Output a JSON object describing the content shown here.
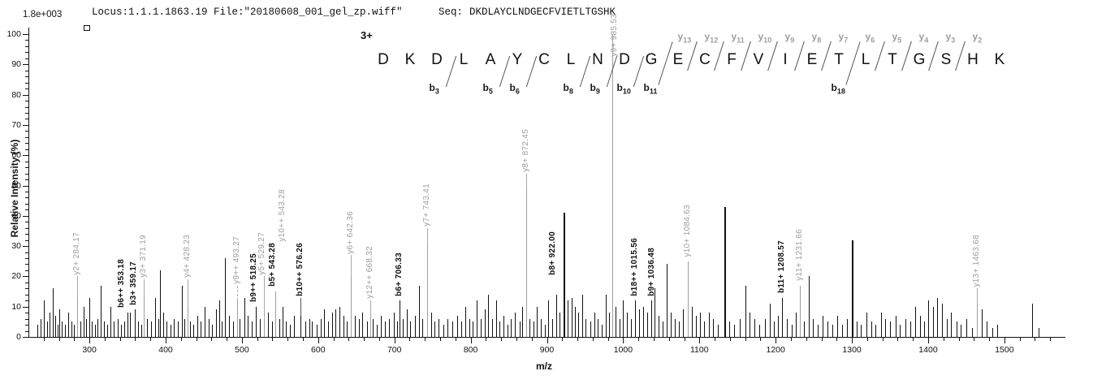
{
  "header": {
    "locus_file": "Locus:1.1.1.1863.19 File:\"20180608_001_gel_zp.wiff\"",
    "seq_label": "Seq:",
    "sequence": "DKDLAYCLNDGECFVIETLTGSHK"
  },
  "scale_label": "1.8e+003",
  "fragment_map": {
    "charge_label": "3+",
    "residues": "DKDLAYCLNDGECFVIETLTGSHK",
    "y_ions": [
      {
        "label": "y13",
        "gap": 11
      },
      {
        "label": "y12",
        "gap": 12
      },
      {
        "label": "y11",
        "gap": 13
      },
      {
        "label": "y10",
        "gap": 14
      },
      {
        "label": "y9",
        "gap": 15
      },
      {
        "label": "y8",
        "gap": 16
      },
      {
        "label": "y7",
        "gap": 17
      },
      {
        "label": "y6",
        "gap": 18
      },
      {
        "label": "y5",
        "gap": 19
      },
      {
        "label": "y4",
        "gap": 20
      },
      {
        "label": "y3",
        "gap": 21
      },
      {
        "label": "y2",
        "gap": 22
      }
    ],
    "b_ions": [
      {
        "label": "b3",
        "gap": 3
      },
      {
        "label": "b5",
        "gap": 5
      },
      {
        "label": "b6",
        "gap": 6
      },
      {
        "label": "b8",
        "gap": 8
      },
      {
        "label": "b9",
        "gap": 9
      },
      {
        "label": "b10",
        "gap": 10
      },
      {
        "label": "b11",
        "gap": 11
      },
      {
        "label": "b18",
        "gap": 18
      }
    ]
  },
  "chart_data": {
    "type": "bar",
    "variant": "centroided-msms-spectrum",
    "xlabel": "m/z",
    "ylabel": "Relative Intensity (%)",
    "xlim": [
      220,
      1580
    ],
    "ylim": [
      0,
      100
    ],
    "x_major_ticks": [
      300,
      400,
      500,
      600,
      700,
      800,
      900,
      1000,
      1100,
      1200,
      1300,
      1400,
      1500
    ],
    "y_major_ticks": [
      0,
      10,
      20,
      30,
      40,
      50,
      60,
      70,
      80,
      90,
      100
    ],
    "base_peak_intensity": "1.8e+003",
    "colors": {
      "y_series": "#9e9e9e",
      "b_series": "#111111",
      "noise": "#111111"
    },
    "labeled_peaks": [
      {
        "ion": "y2+",
        "series": "y",
        "mz": 284.17,
        "intensity": 12,
        "label": "y2+ 284.17",
        "label_y": 20
      },
      {
        "ion": "b6++",
        "series": "b",
        "mz": 353.18,
        "intensity": 8,
        "label": "b6++ 353.18",
        "label_y": 9,
        "dx": -10
      },
      {
        "ion": "b3+",
        "series": "b",
        "mz": 359.17,
        "intensity": 9,
        "label": "b3+ 359.17",
        "label_y": 10,
        "dx": -1
      },
      {
        "ion": "y3+",
        "series": "y",
        "mz": 371.19,
        "intensity": 13,
        "label": "y3+ 371.19",
        "label_y": 19
      },
      {
        "ion": "y4+",
        "series": "y",
        "mz": 428.23,
        "intensity": 10,
        "label": "y4+ 428.23",
        "label_y": 19
      },
      {
        "ion": "y9++",
        "series": "y",
        "mz": 493.27,
        "intensity": 12,
        "label": "y9++ 493.27",
        "label_y": 17,
        "leader": "dashed"
      },
      {
        "ion": "b9++",
        "series": "b",
        "mz": 518.25,
        "intensity": 10,
        "label": "b9++ 518.25",
        "label_y": 11,
        "dx": -2
      },
      {
        "ion": "y5+",
        "series": "y",
        "mz": 529.27,
        "intensity": 6,
        "label": "y5+ 529.27",
        "label_y": 20,
        "dx": -2
      },
      {
        "ion": "b5+",
        "series": "b",
        "mz": 543.28,
        "intensity": 15,
        "label": "b5+ 543.28",
        "label_y": 16,
        "dx": -3
      },
      {
        "ion": "y10++",
        "series": "y",
        "mz": 543.28,
        "intensity": 15,
        "label": "y10++ 543.28",
        "label_y": 31,
        "dx": 9,
        "leader": "none"
      },
      {
        "ion": "b10++",
        "series": "b",
        "mz": 576.26,
        "intensity": 7,
        "label": "b10++ 576.26",
        "label_y": 13
      },
      {
        "ion": "y6+",
        "series": "y",
        "mz": 642.36,
        "intensity": 20,
        "label": "y6+ 642.36",
        "label_y": 27
      },
      {
        "ion": "y12++",
        "series": "y",
        "mz": 668.32,
        "intensity": 7,
        "label": "y12++ 668.32",
        "label_y": 12
      },
      {
        "ion": "b6+",
        "series": "b",
        "mz": 706.33,
        "intensity": 12,
        "label": "b6+ 706.33",
        "label_y": 13
      },
      {
        "ion": "y7+",
        "series": "y",
        "mz": 743.41,
        "intensity": 30,
        "label": "y7+ 743.41",
        "label_y": 36
      },
      {
        "ion": "y8+",
        "series": "y",
        "mz": 872.45,
        "intensity": 50,
        "label": "y8+ 872.45",
        "label_y": 54
      },
      {
        "ion": "b8+",
        "series": "b",
        "mz": 922.0,
        "intensity": 41,
        "w": 2,
        "label": "b8+ 922.00",
        "label_y": 20,
        "dx": -13,
        "leader": "none"
      },
      {
        "ion": "y9+",
        "series": "y",
        "mz": 985.53,
        "intensity": 100,
        "label": "y9+ 985.53",
        "label_y": 92,
        "dx": 3,
        "leader": "none"
      },
      {
        "ion": "b18++",
        "series": "b",
        "mz": 1015.56,
        "intensity": 12,
        "label": "b18++ 1015.56",
        "label_y": 13
      },
      {
        "ion": "b9+",
        "series": "b",
        "mz": 1036.48,
        "intensity": 12,
        "label": "b9+ 1036.48",
        "label_y": 13,
        "dx": 1
      },
      {
        "ion": "y10+",
        "series": "y",
        "mz": 1084.63,
        "intensity": 25,
        "label": "y10+ 1084.63",
        "label_y": 26
      },
      {
        "ion": "b11+",
        "series": "b",
        "mz": 1208.57,
        "intensity": 13,
        "label": "b11+ 1208.57",
        "label_y": 14
      },
      {
        "ion": "y11+",
        "series": "y",
        "mz": 1231.66,
        "intensity": 17,
        "label": "y11+ 1231.66",
        "label_y": 18
      },
      {
        "ion": "y13+",
        "series": "y",
        "mz": 1463.68,
        "intensity": 11,
        "label": "y13+ 1463.68",
        "label_y": 16
      }
    ],
    "unlabeled_peaks": [
      [
        232,
        4
      ],
      [
        236,
        6
      ],
      [
        240,
        12
      ],
      [
        244,
        5
      ],
      [
        248,
        8
      ],
      [
        252,
        16
      ],
      [
        255,
        7
      ],
      [
        258,
        4
      ],
      [
        261,
        9
      ],
      [
        264,
        5
      ],
      [
        268,
        4
      ],
      [
        272,
        8
      ],
      [
        276,
        5
      ],
      [
        280,
        4
      ],
      [
        288,
        5
      ],
      [
        292,
        10
      ],
      [
        296,
        6
      ],
      [
        300,
        13
      ],
      [
        303,
        5
      ],
      [
        307,
        4
      ],
      [
        311,
        6
      ],
      [
        315,
        17
      ],
      [
        319,
        5
      ],
      [
        323,
        4
      ],
      [
        328,
        10
      ],
      [
        332,
        5
      ],
      [
        337,
        6
      ],
      [
        341,
        4
      ],
      [
        346,
        5
      ],
      [
        350,
        8
      ],
      [
        364,
        5
      ],
      [
        368,
        4
      ],
      [
        376,
        6
      ],
      [
        381,
        5
      ],
      [
        386,
        13
      ],
      [
        390,
        6
      ],
      [
        393,
        22
      ],
      [
        397,
        8
      ],
      [
        401,
        5
      ],
      [
        406,
        4
      ],
      [
        411,
        6
      ],
      [
        416,
        5
      ],
      [
        421,
        17
      ],
      [
        425,
        6
      ],
      [
        432,
        5
      ],
      [
        436,
        4
      ],
      [
        441,
        7
      ],
      [
        446,
        5
      ],
      [
        451,
        10
      ],
      [
        456,
        6
      ],
      [
        461,
        4
      ],
      [
        466,
        9
      ],
      [
        470,
        12
      ],
      [
        474,
        5
      ],
      [
        478,
        26
      ],
      [
        483,
        7
      ],
      [
        488,
        5
      ],
      [
        497,
        6
      ],
      [
        503,
        13
      ],
      [
        508,
        7
      ],
      [
        513,
        5
      ],
      [
        524,
        6
      ],
      [
        534,
        8
      ],
      [
        539,
        5
      ],
      [
        549,
        6
      ],
      [
        553,
        10
      ],
      [
        558,
        5
      ],
      [
        563,
        4
      ],
      [
        568,
        7
      ],
      [
        583,
        5
      ],
      [
        588,
        6
      ],
      [
        592,
        5
      ],
      [
        598,
        4
      ],
      [
        603,
        6
      ],
      [
        608,
        9
      ],
      [
        613,
        5
      ],
      [
        618,
        8
      ],
      [
        623,
        9
      ],
      [
        628,
        10
      ],
      [
        633,
        7
      ],
      [
        637,
        5
      ],
      [
        648,
        7
      ],
      [
        653,
        6
      ],
      [
        658,
        8
      ],
      [
        664,
        5
      ],
      [
        672,
        6
      ],
      [
        677,
        4
      ],
      [
        682,
        7
      ],
      [
        688,
        5
      ],
      [
        693,
        6
      ],
      [
        699,
        8
      ],
      [
        703,
        5
      ],
      [
        711,
        6
      ],
      [
        716,
        9
      ],
      [
        721,
        5
      ],
      [
        727,
        7
      ],
      [
        732,
        17
      ],
      [
        737,
        6
      ],
      [
        748,
        8
      ],
      [
        753,
        5
      ],
      [
        758,
        6
      ],
      [
        764,
        4
      ],
      [
        770,
        6
      ],
      [
        776,
        5
      ],
      [
        782,
        7
      ],
      [
        788,
        5
      ],
      [
        793,
        10
      ],
      [
        798,
        6
      ],
      [
        803,
        5
      ],
      [
        808,
        12
      ],
      [
        813,
        6
      ],
      [
        818,
        9
      ],
      [
        823,
        14
      ],
      [
        828,
        6
      ],
      [
        833,
        12
      ],
      [
        838,
        5
      ],
      [
        843,
        7
      ],
      [
        848,
        4
      ],
      [
        853,
        6
      ],
      [
        858,
        8
      ],
      [
        864,
        5
      ],
      [
        868,
        10
      ],
      [
        877,
        6
      ],
      [
        882,
        5
      ],
      [
        887,
        10
      ],
      [
        892,
        6
      ],
      [
        897,
        4
      ],
      [
        902,
        12
      ],
      [
        907,
        6
      ],
      [
        912,
        14
      ],
      [
        917,
        8
      ],
      [
        927,
        12
      ],
      [
        932,
        13
      ],
      [
        937,
        10
      ],
      [
        941,
        8
      ],
      [
        946,
        14
      ],
      [
        951,
        6
      ],
      [
        957,
        5
      ],
      [
        962,
        8
      ],
      [
        967,
        6
      ],
      [
        972,
        4
      ],
      [
        977,
        14
      ],
      [
        981,
        8
      ],
      [
        990,
        10
      ],
      [
        995,
        6
      ],
      [
        1000,
        12
      ],
      [
        1005,
        8
      ],
      [
        1010,
        6
      ],
      [
        1021,
        9
      ],
      [
        1026,
        10
      ],
      [
        1031,
        8
      ],
      [
        1041,
        16
      ],
      [
        1046,
        7
      ],
      [
        1052,
        5
      ],
      [
        1057,
        24
      ],
      [
        1062,
        8
      ],
      [
        1068,
        6
      ],
      [
        1073,
        5
      ],
      [
        1078,
        9
      ],
      [
        1090,
        10
      ],
      [
        1095,
        7
      ],
      [
        1101,
        8
      ],
      [
        1106,
        5
      ],
      [
        1112,
        8
      ],
      [
        1118,
        6
      ],
      [
        1124,
        4
      ],
      [
        1133,
        43,
        2
      ],
      [
        1139,
        5
      ],
      [
        1146,
        4
      ],
      [
        1153,
        6
      ],
      [
        1160,
        17
      ],
      [
        1166,
        8
      ],
      [
        1172,
        6
      ],
      [
        1179,
        4
      ],
      [
        1186,
        6
      ],
      [
        1192,
        11
      ],
      [
        1198,
        5
      ],
      [
        1203,
        7
      ],
      [
        1215,
        6
      ],
      [
        1221,
        4
      ],
      [
        1226,
        8
      ],
      [
        1237,
        5
      ],
      [
        1243,
        20
      ],
      [
        1249,
        6
      ],
      [
        1255,
        4
      ],
      [
        1262,
        7
      ],
      [
        1268,
        5
      ],
      [
        1274,
        4
      ],
      [
        1281,
        7
      ],
      [
        1287,
        4
      ],
      [
        1294,
        6
      ],
      [
        1300,
        32,
        2
      ],
      [
        1306,
        5
      ],
      [
        1312,
        4
      ],
      [
        1319,
        8
      ],
      [
        1325,
        5
      ],
      [
        1331,
        4
      ],
      [
        1338,
        8
      ],
      [
        1344,
        6
      ],
      [
        1350,
        5
      ],
      [
        1357,
        7
      ],
      [
        1363,
        4
      ],
      [
        1370,
        6
      ],
      [
        1377,
        5
      ],
      [
        1383,
        10
      ],
      [
        1389,
        7
      ],
      [
        1395,
        5
      ],
      [
        1400,
        12
      ],
      [
        1406,
        10
      ],
      [
        1412,
        13
      ],
      [
        1418,
        11
      ],
      [
        1424,
        6
      ],
      [
        1430,
        8
      ],
      [
        1437,
        5
      ],
      [
        1443,
        4
      ],
      [
        1450,
        6
      ],
      [
        1457,
        3
      ],
      [
        1470,
        9
      ],
      [
        1477,
        5
      ],
      [
        1484,
        3
      ],
      [
        1491,
        4
      ],
      [
        1536,
        11
      ],
      [
        1545,
        3
      ]
    ]
  }
}
